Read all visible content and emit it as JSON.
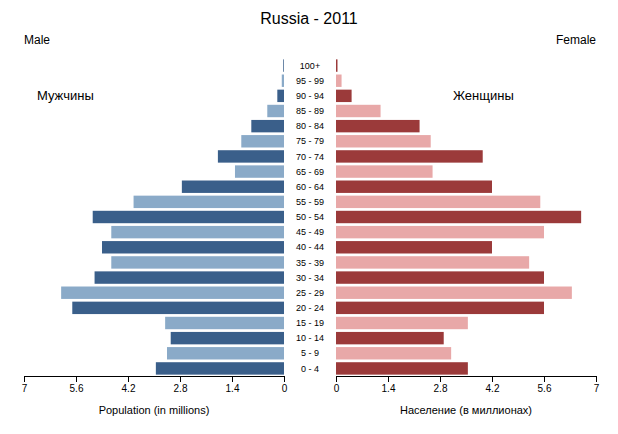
{
  "chart_data": {
    "type": "bar",
    "orientation": "horizontal",
    "title": "Russia - 2011",
    "xlabel": [
      "Population (in millions)",
      "Население (в миллионах)"
    ],
    "annotations": [
      "Мужчины",
      "Женщины"
    ],
    "categories": [
      "100+",
      "95 - 99",
      "90 - 94",
      "85 - 89",
      "80 - 84",
      "75 - 79",
      "70 - 74",
      "65 - 69",
      "60 - 64",
      "55 - 59",
      "50 - 54",
      "45 - 49",
      "40 - 44",
      "35 - 39",
      "30 - 34",
      "25 - 29",
      "20 - 24",
      "15 - 19",
      "10 - 14",
      "5 - 9",
      "0 - 4"
    ],
    "series": [
      {
        "name": "Male",
        "values": [
          0.02,
          0.06,
          0.18,
          0.45,
          0.88,
          1.15,
          1.78,
          1.32,
          2.75,
          4.05,
          5.15,
          4.65,
          4.9,
          4.65,
          5.1,
          6.0,
          5.7,
          3.2,
          3.05,
          3.15,
          3.45
        ],
        "colors": [
          "#3a5f8a",
          "#8aaac8",
          "#3a5f8a",
          "#8aaac8",
          "#3a5f8a",
          "#8aaac8",
          "#3a5f8a",
          "#8aaac8",
          "#3a5f8a",
          "#8aaac8",
          "#3a5f8a",
          "#8aaac8",
          "#3a5f8a",
          "#8aaac8",
          "#3a5f8a",
          "#8aaac8",
          "#3a5f8a",
          "#8aaac8",
          "#3a5f8a",
          "#8aaac8",
          "#3a5f8a"
        ]
      },
      {
        "name": "Female",
        "values": [
          0.04,
          0.15,
          0.42,
          1.2,
          2.25,
          2.55,
          3.95,
          2.6,
          4.2,
          5.5,
          6.6,
          5.6,
          4.2,
          5.2,
          5.6,
          6.35,
          5.6,
          3.55,
          2.9,
          3.1,
          3.55
        ],
        "colors": [
          "#9b3a3a",
          "#e8a8a8",
          "#9b3a3a",
          "#e8a8a8",
          "#9b3a3a",
          "#e8a8a8",
          "#9b3a3a",
          "#e8a8a8",
          "#9b3a3a",
          "#e8a8a8",
          "#9b3a3a",
          "#e8a8a8",
          "#9b3a3a",
          "#e8a8a8",
          "#9b3a3a",
          "#e8a8a8",
          "#9b3a3a",
          "#e8a8a8",
          "#9b3a3a",
          "#e8a8a8",
          "#9b3a3a"
        ]
      }
    ],
    "xlim": [
      0,
      7
    ],
    "xticks": [
      0,
      1.4,
      2.8,
      4.2,
      5.6,
      7
    ],
    "grid": false
  }
}
